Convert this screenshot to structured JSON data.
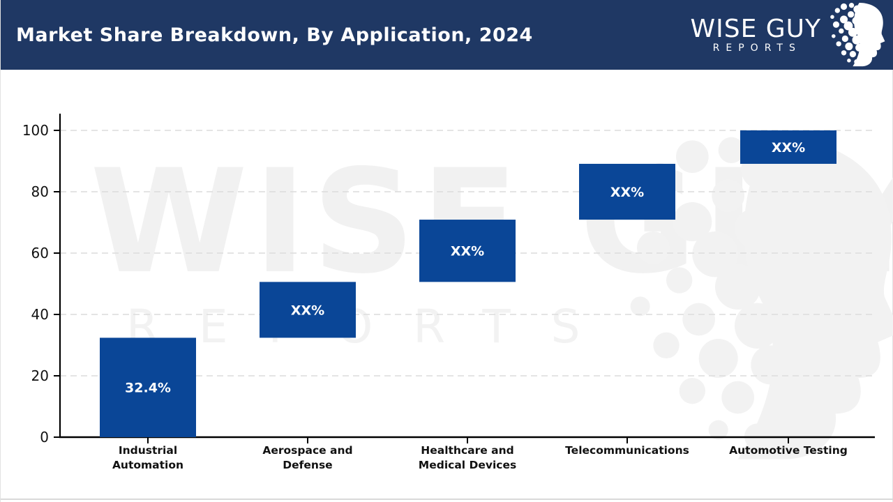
{
  "header": {
    "title": "Market Share Breakdown, By Application, 2024",
    "logo": {
      "line1": "WISE GUY",
      "line2": "REPORTS"
    }
  },
  "watermark": {
    "line1": "WISE GUY",
    "line2": "REPORTS"
  },
  "chart_data": {
    "type": "bar",
    "subtype": "waterfall",
    "title": "Market Share Breakdown, By Application, 2024",
    "categories": [
      "Industrial Automation",
      "Aerospace and Defense",
      "Healthcare and Medical Devices",
      "Telecommunications",
      "Automotive Testing"
    ],
    "category_lines": [
      [
        "Industrial",
        "Automation"
      ],
      [
        "Aerospace and",
        "Defense"
      ],
      [
        "Healthcare and",
        "Medical Devices"
      ],
      [
        "Telecommunications"
      ],
      [
        "Automotive Testing"
      ]
    ],
    "segments": [
      {
        "category": "Industrial Automation",
        "start": 0,
        "end": 32.4,
        "label": "32.4%"
      },
      {
        "category": "Aerospace and Defense",
        "start": 32.4,
        "end": 50.6,
        "label": "XX%"
      },
      {
        "category": "Healthcare and Medical Devices",
        "start": 50.6,
        "end": 70.9,
        "label": "XX%"
      },
      {
        "category": "Telecommunications",
        "start": 70.9,
        "end": 89.1,
        "label": "XX%"
      },
      {
        "category": "Automotive Testing",
        "start": 89.1,
        "end": 100,
        "label": "XX%"
      }
    ],
    "ylim": [
      0,
      100
    ],
    "yticks": [
      0,
      20,
      40,
      60,
      80,
      100
    ],
    "grid": "horizontal dashed",
    "legend": "none"
  },
  "colors": {
    "header_bg": "#1f3864",
    "bar": "#0a4697",
    "bar_label": "#ffffff",
    "grid": "#dcdcdc",
    "axis": "#000000",
    "tick_label": "#111111",
    "watermark": "#f1f1f1"
  }
}
